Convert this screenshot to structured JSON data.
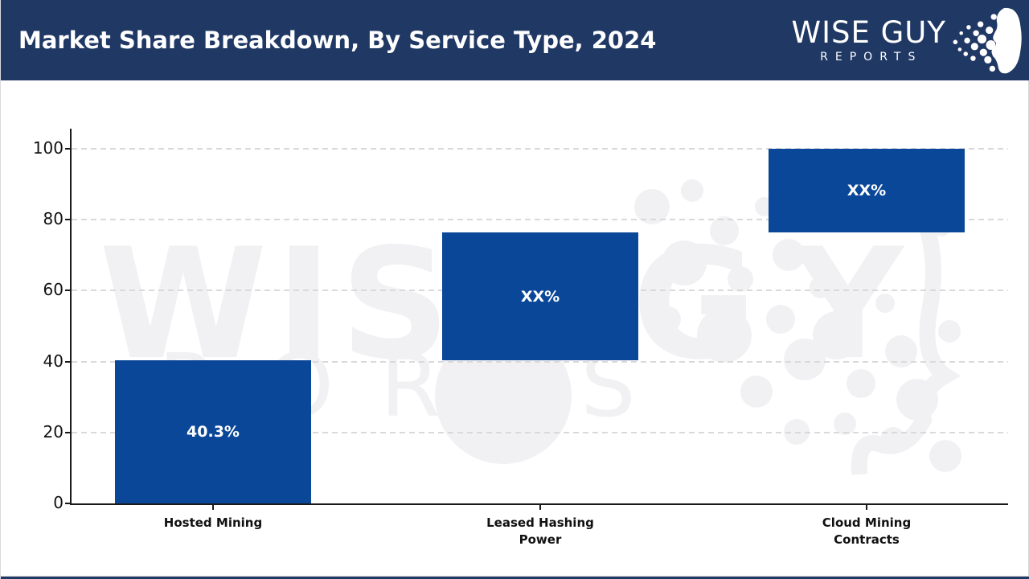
{
  "header": {
    "title": "Market Share Breakdown, By Service Type, 2024",
    "logo": {
      "line1": "WISE GUY",
      "line2": "REPORTS"
    }
  },
  "watermark": {
    "line1": "WISE G",
    "tail": "Y",
    "line2": "RORTS"
  },
  "chart_data": {
    "type": "bar",
    "subtype": "waterfall",
    "title": "Market Share Breakdown, By Service Type, 2024",
    "categories": [
      "Hosted Mining",
      "Leased Hashing Power",
      "Cloud Mining Contracts"
    ],
    "categories_lines": [
      [
        "Hosted Mining"
      ],
      [
        "Leased Hashing",
        "Power"
      ],
      [
        "Cloud Mining",
        "Contracts"
      ]
    ],
    "segments": [
      {
        "category": "Hosted Mining",
        "start": 0,
        "end": 40.3,
        "value_label": "40.3%"
      },
      {
        "category": "Leased Hashing Power",
        "start": 40.3,
        "end": 76.4,
        "value_label": "XX%"
      },
      {
        "category": "Cloud Mining Contracts",
        "start": 76.4,
        "end": 100,
        "value_label": "XX%"
      }
    ],
    "values_displayed": [
      "40.3%",
      "XX%",
      "XX%"
    ],
    "xlabel": "",
    "ylabel": "",
    "ylim": [
      0,
      100
    ],
    "yticks": [
      0,
      20,
      40,
      60,
      80,
      100
    ],
    "grid": "dashed horizontal",
    "legend": "none",
    "colors": {
      "bar": "#0b4798",
      "header": "#203864",
      "gridline": "#d9d9d9",
      "axis": "#1a1a1a",
      "bar_label_text": "#ffffff",
      "watermark": "#f1f1f4"
    }
  }
}
